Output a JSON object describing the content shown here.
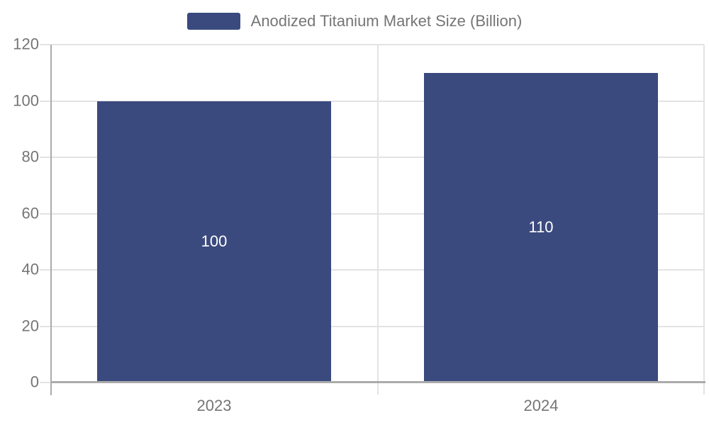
{
  "chart_data": {
    "type": "bar",
    "title": "",
    "series_name": "Anodized Titanium Market Size (Billion)",
    "categories": [
      "2023",
      "2024"
    ],
    "values": [
      100,
      110
    ],
    "value_labels": [
      "100",
      "110"
    ],
    "ylim": [
      0,
      120
    ],
    "yticks": [
      0,
      20,
      40,
      60,
      80,
      100,
      120
    ],
    "xlabel": "",
    "ylabel": "",
    "grid": true,
    "legend_position": "top-center",
    "value_label_position": "center-of-bar",
    "colors": {
      "bar": "#3A4A7E",
      "value_label": "#FFFFFF",
      "axis_text": "#757575",
      "axis_line": "#ABABAB",
      "gridline": "#E3E3E6",
      "background": "#FFFFFF"
    }
  }
}
